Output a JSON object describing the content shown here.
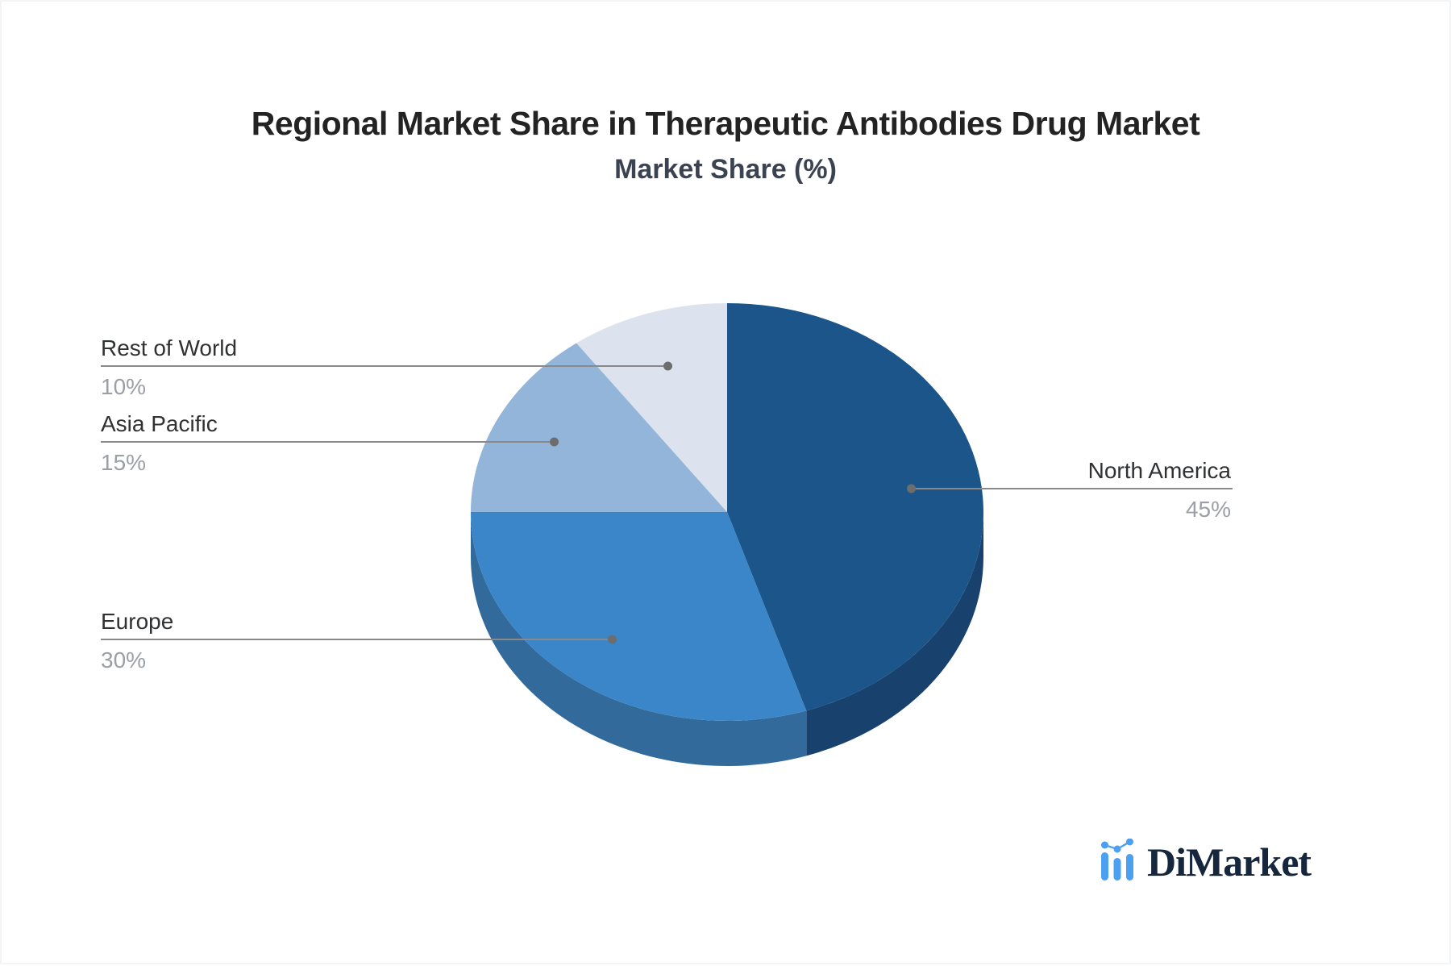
{
  "chart_data": {
    "type": "pie",
    "style": "pie-3d",
    "title": "Regional Market Share in Therapeutic Antibodies Drug Market",
    "subtitle": "Market Share (%)",
    "unit": "%",
    "labels": [
      "North America",
      "Europe",
      "Asia Pacific",
      "Rest of World"
    ],
    "values": [
      45,
      30,
      15,
      10
    ],
    "value_labels": [
      "45%",
      "30%",
      "15%",
      "10%"
    ],
    "colors": [
      "#1b558a",
      "#3a86c8",
      "#93b5d9",
      "#dce3ef"
    ],
    "side_colors": [
      "#18426d",
      "#336a9c",
      "#7fa5cc",
      "#c9d4e4"
    ],
    "start_angle_deg": 0,
    "clockwise": true,
    "legend_position": "none",
    "callout_line_color": "#898989",
    "label_color": "#2f3133",
    "value_color": "#9aa0a6"
  },
  "logo": {
    "brand": "DiMarket",
    "icon": "bar-chart-sparkline-icon",
    "icon_color": "#4ba0f2",
    "text_color": "#16263c"
  }
}
